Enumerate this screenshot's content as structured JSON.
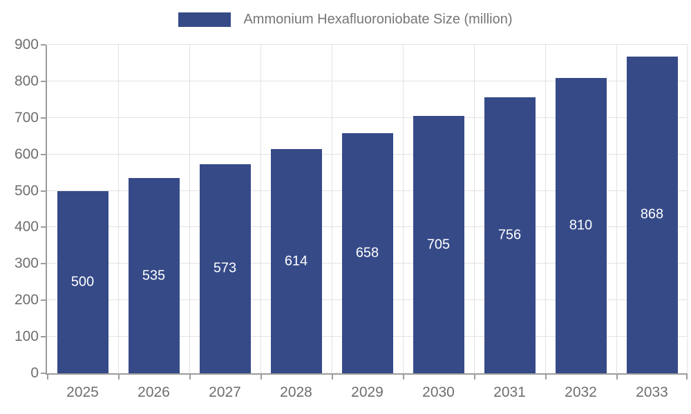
{
  "legend": {
    "label": "Ammonium Hexafluoroniobate Size (million)"
  },
  "chart_data": {
    "type": "bar",
    "title": "Ammonium Hexafluoroniobate Size (million)",
    "categories": [
      "2025",
      "2026",
      "2027",
      "2028",
      "2029",
      "2030",
      "2031",
      "2032",
      "2033"
    ],
    "values": [
      500,
      535,
      573,
      614,
      658,
      705,
      756,
      810,
      868
    ],
    "xlabel": "",
    "ylabel": "",
    "ylim": [
      0,
      900
    ],
    "ytick_step": 100,
    "grid": true,
    "legend_position": "top-center",
    "bar_color": "#364A88",
    "value_label_color": "#FFFFFF",
    "axis_label_color": "#6E6E6E",
    "legend_text_color": "#767676",
    "gridline_color": "#E2E2E2",
    "axis_line_color": "#9B9B9B"
  }
}
